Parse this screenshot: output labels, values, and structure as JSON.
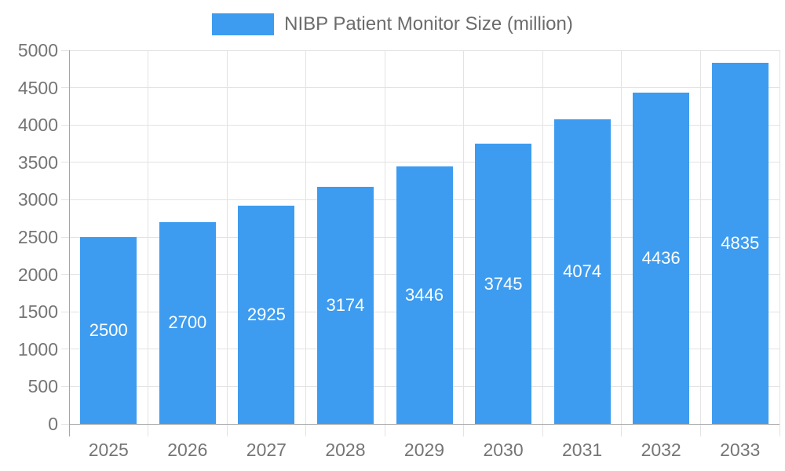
{
  "legend": {
    "label": "NIBP Patient Monitor Size (million)"
  },
  "chart_data": {
    "type": "bar",
    "title": "",
    "xlabel": "",
    "ylabel": "",
    "categories": [
      "2025",
      "2026",
      "2027",
      "2028",
      "2029",
      "2030",
      "2031",
      "2032",
      "2033"
    ],
    "series": [
      {
        "name": "NIBP Patient Monitor Size (million)",
        "values": [
          2500,
          2700,
          2925,
          3174,
          3446,
          3745,
          4074,
          4436,
          4835
        ]
      }
    ],
    "bar_labels": [
      "2500",
      "2700",
      "2925",
      "3174",
      "3446",
      "3745",
      "4074",
      "4436",
      "4835"
    ],
    "ylim": [
      0,
      5000
    ],
    "y_ticks": [
      0,
      500,
      1000,
      1500,
      2000,
      2500,
      3000,
      3500,
      4000,
      4500,
      5000
    ],
    "grid": true,
    "legend_position": "top",
    "bar_labels_position": "inside-center"
  },
  "style": {
    "bar_color": "#3d9cf0",
    "bar_label_color": "#ffffff",
    "grid_color": "#e3e3e3",
    "axis_line_color": "#a6a6a6",
    "tick_label_color": "#757575",
    "legend_text_color": "#6b6b6b",
    "background_color": "#ffffff"
  }
}
